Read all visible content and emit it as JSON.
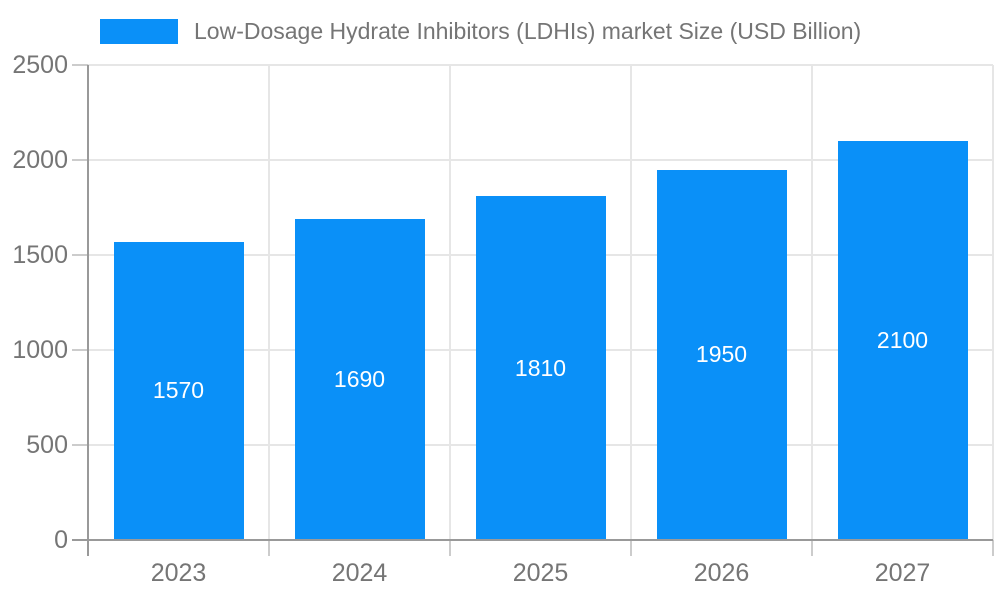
{
  "chart_data": {
    "type": "bar",
    "title": "Low-Dosage Hydrate Inhibitors (LDHIs) market Size (USD Billion)",
    "categories": [
      "2023",
      "2024",
      "2025",
      "2026",
      "2027"
    ],
    "values": [
      1570,
      1690,
      1810,
      1950,
      2100
    ],
    "data_labels": [
      "1570",
      "1690",
      "1810",
      "1950",
      "2100"
    ],
    "xlabel": "",
    "ylabel": "",
    "ylim": [
      0,
      2500
    ],
    "yticks": [
      0,
      500,
      1000,
      1500,
      2000,
      2500
    ],
    "grid": true,
    "legend_position": "top-left",
    "colors": {
      "bar": "#0a90f8",
      "bar_value_label": "#ffffff",
      "gridline": "#e6e6e6",
      "axis_line": "#999999",
      "tick": "#cccccc",
      "axis_text": "#757575",
      "legend_text": "#757575",
      "background": "#ffffff"
    }
  }
}
